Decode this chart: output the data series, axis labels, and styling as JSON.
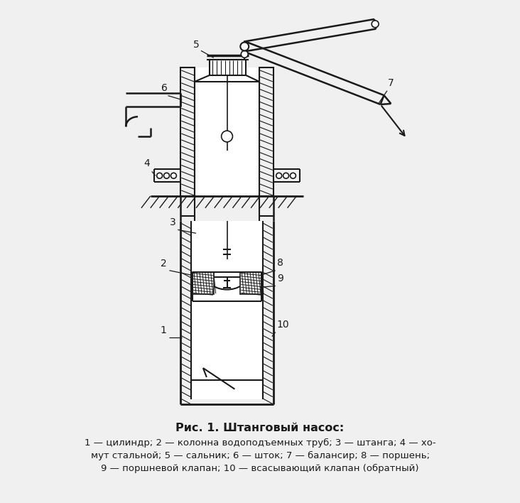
{
  "bg_color": "#f0f0f0",
  "line_color": "#1a1a1a",
  "title": "Рис. 1. Штанговый насос:",
  "caption_line1": "1 — цилиндр; 2 — колонна водоподъемных труб; 3 — штанга; 4 — хо-",
  "caption_line2": "мут стальной; 5 — сальник; 6 — шток; 7 — балансир; 8 — поршень;",
  "caption_line3": "9 — поршневой клапан; 10 — всасывающий клапан (обратный)",
  "lw": 1.5
}
